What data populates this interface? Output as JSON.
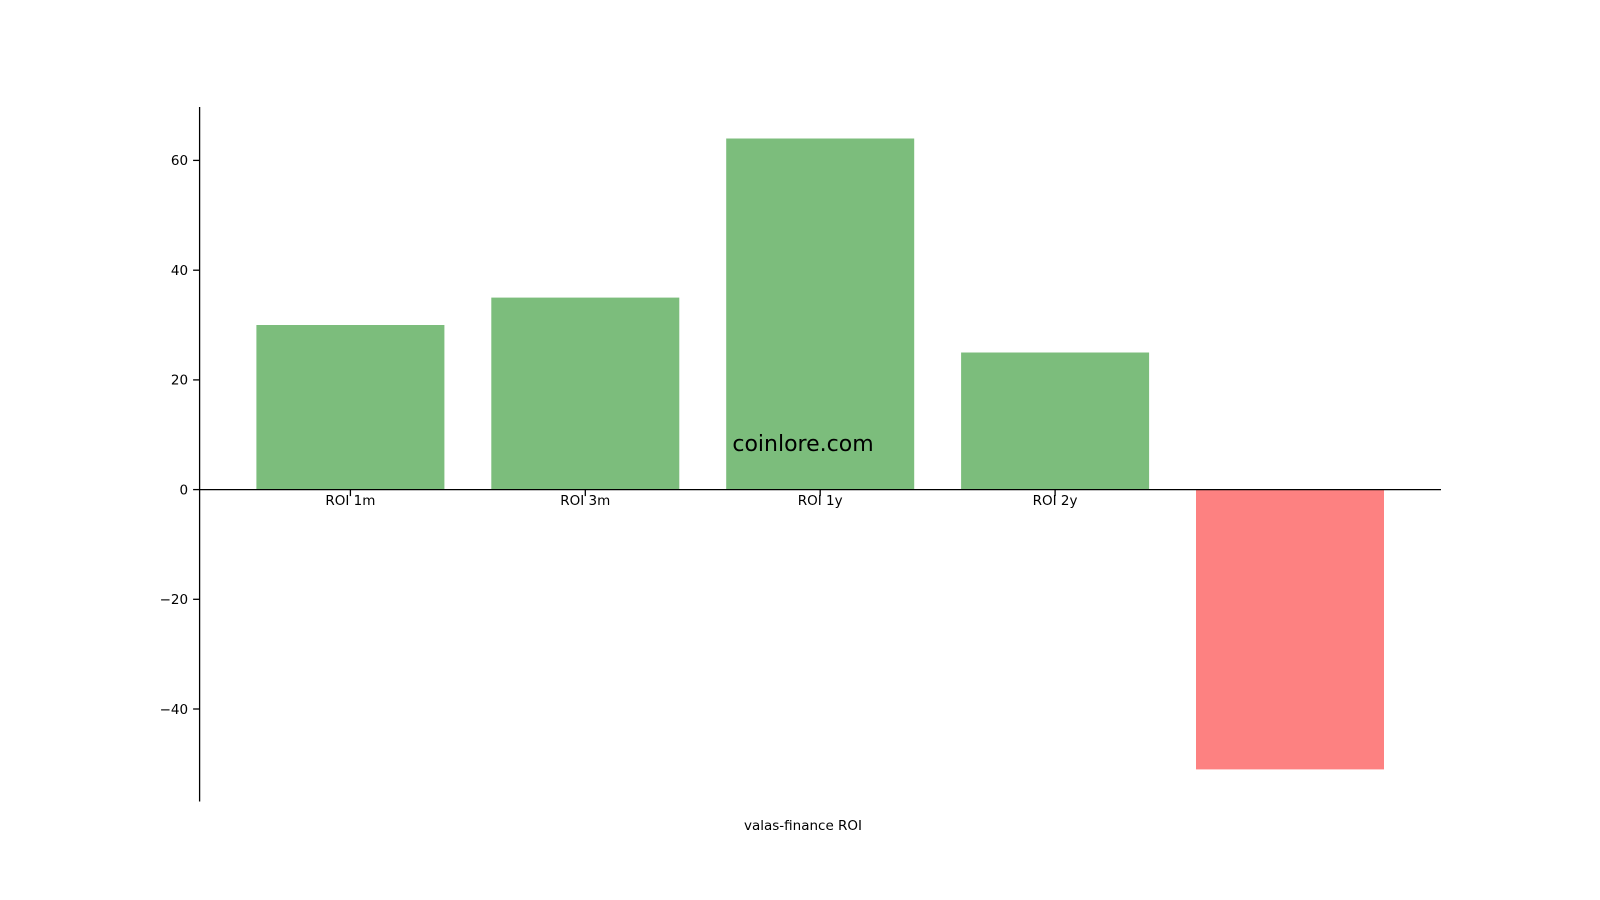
{
  "page": {
    "background_color": "#ffffff"
  },
  "watermark": {
    "text": "coinlore.com",
    "color": "#3a3a3a"
  },
  "chart_data": {
    "type": "bar",
    "title": "valas-finance ROI",
    "categories": [
      "ROI 1m",
      "ROI 3m",
      "ROI 1y",
      "ROI 2y",
      ""
    ],
    "values": [
      30,
      35,
      64,
      25,
      -51
    ],
    "positive_color": "#7cbd7c",
    "negative_color": "#fd8181",
    "axis_color": "#000000",
    "tick_label_color": "#000000",
    "yticks": [
      60,
      40,
      20,
      0,
      -20,
      -40
    ],
    "ytick_labels": [
      "60",
      "40",
      "20",
      "0",
      "−20",
      "−40"
    ],
    "ylim": [
      -56.75,
      69.75
    ],
    "xlabel": "",
    "ylabel": "",
    "grid": false,
    "legend": false
  }
}
